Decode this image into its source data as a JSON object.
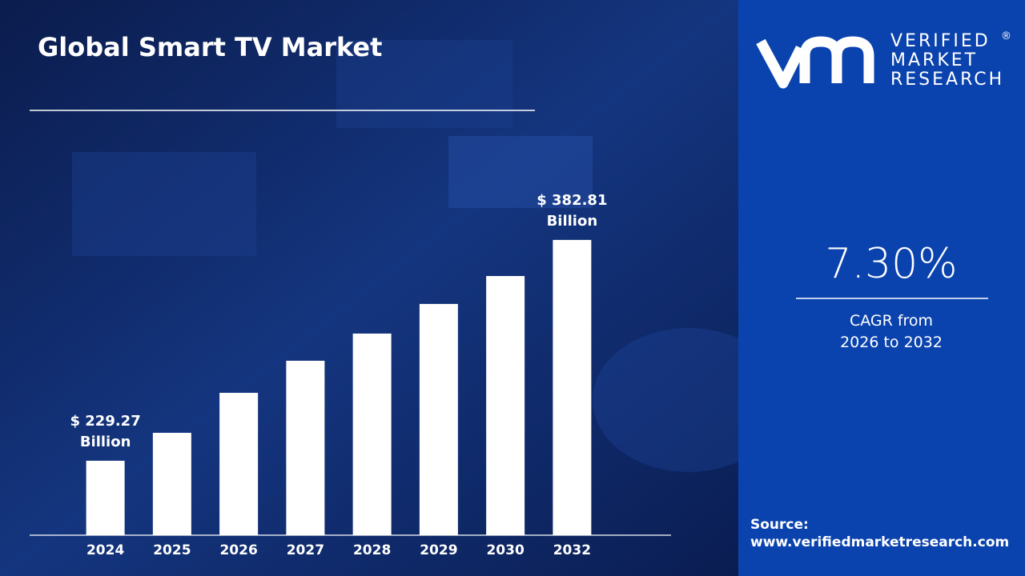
{
  "chart_data": {
    "type": "bar",
    "title": "Global Smart TV Market",
    "categories": [
      "2024",
      "2025",
      "2026",
      "2027",
      "2028",
      "2029",
      "2030",
      "2032"
    ],
    "values": [
      229.27,
      248.7,
      276.5,
      298.8,
      317.7,
      338.3,
      357.7,
      382.81
    ],
    "value_labels": [
      "$ 229.27 Billion",
      null,
      null,
      null,
      null,
      null,
      null,
      "$ 382.81 Billion"
    ],
    "color": "#ffffff",
    "ylim": [
      177.5,
      400
    ]
  },
  "cagr": {
    "value": "7.30%",
    "label": [
      "CAGR from",
      "2026 to 2032"
    ]
  },
  "logo": {
    "lines": [
      "VERIFIED",
      "MARKET",
      "RESEARCH"
    ],
    "mark": "®"
  },
  "source": {
    "label": "Source:",
    "url": "www.verifiedmarketresearch.com"
  }
}
